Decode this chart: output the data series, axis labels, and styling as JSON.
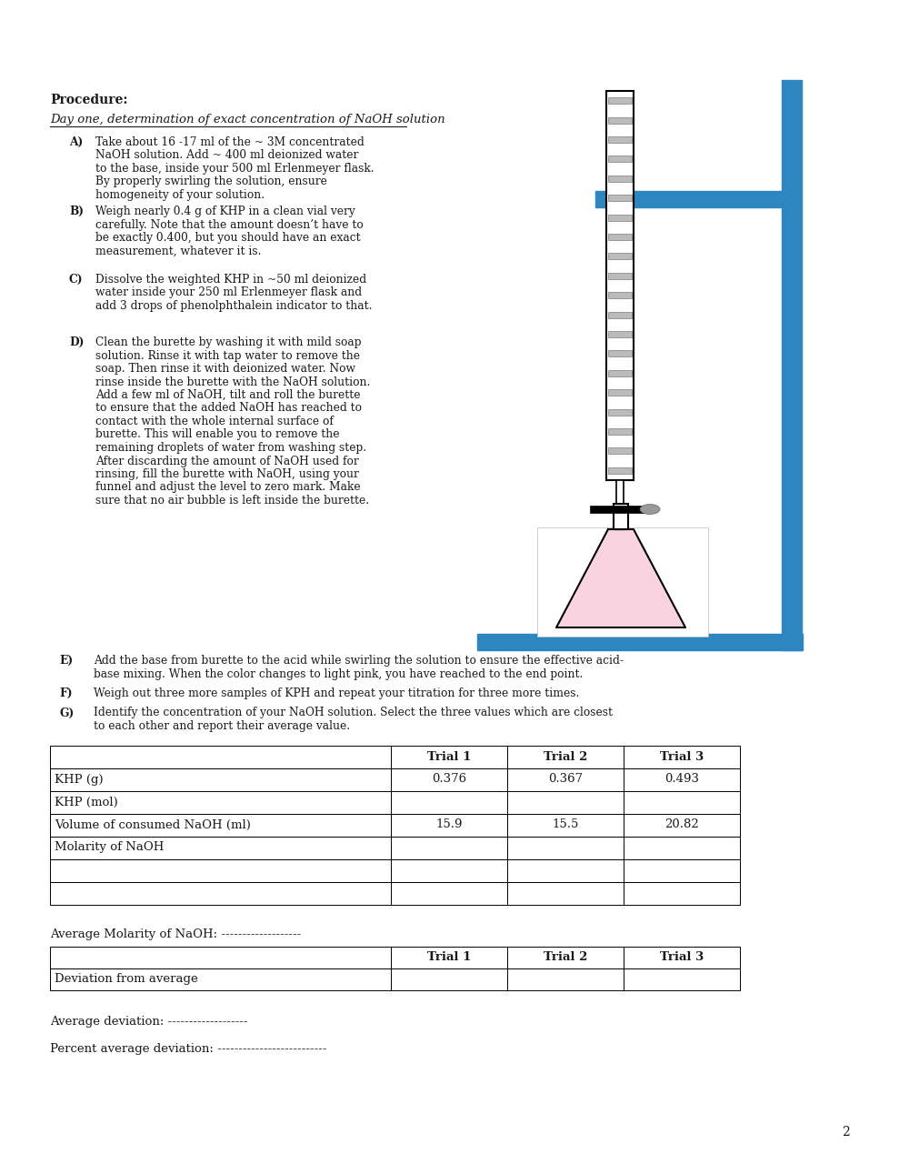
{
  "page_bg": "#ffffff",
  "text_color": "#1a1a1a",
  "blue_color": "#2c7bb6",
  "procedure_bold": "Procedure:",
  "day_one_line": "Day one, determination of exact concentration of NaOH solution",
  "step_a_lines": [
    "Take about 16 -17 ml of the ~ 3M concentrated",
    "NaOH solution. Add ~ 400 ml deionized water",
    "to the base, inside your 500 ml Erlenmeyer flask.",
    "By properly swirling the solution, ensure",
    "homogeneity of your solution."
  ],
  "step_b_lines": [
    "Weigh nearly 0.4 g of KHP in a clean vial very",
    "carefully. Note that the amount doesn’t have to",
    "be exactly 0.400, but you should have an exact",
    "measurement, whatever it is."
  ],
  "step_c_lines": [
    "Dissolve the weighted KHP in ~50 ml deionized",
    "water inside your 250 ml Erlenmeyer flask and",
    "add 3 drops of phenolphthalein indicator to that."
  ],
  "step_d_lines": [
    "Clean the burette by washing it with mild soap",
    "solution. Rinse it with tap water to remove the",
    "soap. Then rinse it with deionized water. Now",
    "rinse inside the burette with the NaOH solution.",
    "Add a few ml of NaOH, tilt and roll the burette",
    "to ensure that the added NaOH has reached to",
    "contact with the whole internal surface of",
    "burette. This will enable you to remove the",
    "remaining droplets of water from washing step.",
    "After discarding the amount of NaOH used for",
    "rinsing, fill the burette with NaOH, using your",
    "funnel and adjust the level to zero mark. Make",
    "sure that no air bubble is left inside the burette."
  ],
  "step_e_lines": [
    "Add the base from burette to the acid while swirling the solution to ensure the effective acid-",
    "base mixing. When the color changes to light pink, you have reached to the end point."
  ],
  "step_f_lines": [
    "Weigh out three more samples of KPH and repeat your titration for three more times."
  ],
  "step_g_lines": [
    "Identify the concentration of your NaOH solution. Select the three values which are closest",
    "to each other and report their average value."
  ],
  "table1_headers": [
    "",
    "Trial 1",
    "Trial 2",
    "Trial 3"
  ],
  "table1_rows": [
    [
      "KHP (g)",
      "0.376",
      "0.367",
      "0.493"
    ],
    [
      "KHP (mol)",
      "",
      "",
      ""
    ],
    [
      "Volume of consumed NaOH (ml)",
      "15.9",
      "15.5",
      "20.82"
    ],
    [
      "Molarity of NaOH",
      "",
      "",
      ""
    ],
    [
      "",
      "",
      "",
      ""
    ],
    [
      "",
      "",
      "",
      ""
    ]
  ],
  "avg_molarity_label": "Average Molarity of NaOH: -------------------",
  "table2_headers": [
    "",
    "Trial 1",
    "Trial 2",
    "Trial 3"
  ],
  "table2_rows": [
    [
      "Deviation from average",
      "",
      "",
      ""
    ]
  ],
  "avg_deviation_label": "Average deviation: -------------------",
  "pct_avg_deviation_label": "Percent average deviation: --------------------------",
  "page_number": "2",
  "blue": "#2e86c1",
  "pink": "#f9d0dd",
  "gray_tick": "#bbbbbb"
}
